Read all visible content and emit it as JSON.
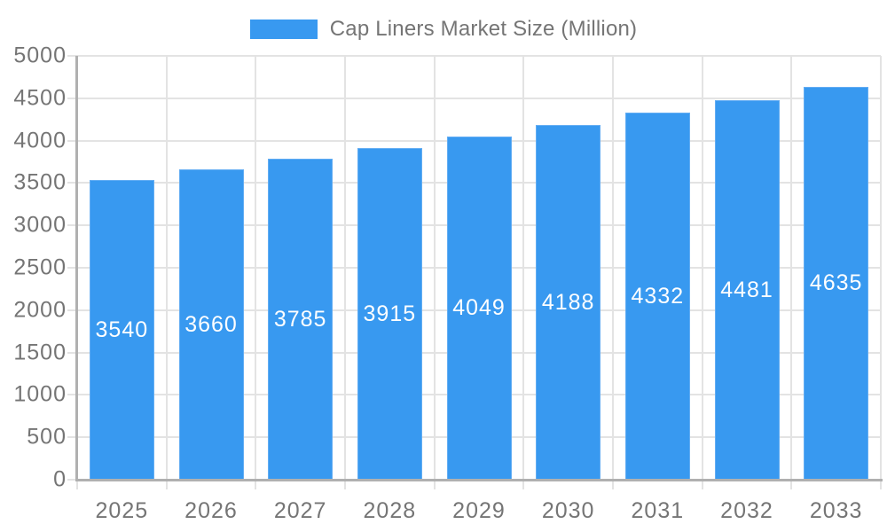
{
  "chart_data": {
    "type": "bar",
    "title": "",
    "legend": {
      "position": "top",
      "label": "Cap Liners Market Size (Million)"
    },
    "categories": [
      "2025",
      "2026",
      "2027",
      "2028",
      "2029",
      "2030",
      "2031",
      "2032",
      "2033"
    ],
    "series": [
      {
        "name": "Cap Liners Market Size (Million)",
        "values": [
          3540,
          3660,
          3785,
          3915,
          4049,
          4188,
          4332,
          4481,
          4635
        ]
      }
    ],
    "data_labels": [
      "3540",
      "3660",
      "3785",
      "3915",
      "4049",
      "4188",
      "4332",
      "4481",
      "4635"
    ],
    "xlabel": "",
    "ylabel": "",
    "ylim": [
      0,
      5000
    ],
    "ytick_step": 500,
    "y_tick_labels": [
      "0",
      "500",
      "1000",
      "1500",
      "2000",
      "2500",
      "3000",
      "3500",
      "4000",
      "4500",
      "5000"
    ],
    "grid": true,
    "colors": {
      "bar_fill": "#3899F0",
      "bar_edge": "#63ADF3",
      "bar_label_text": "#FFFFFF",
      "axis_text": "#757575",
      "grid_line": "#E3E3E3",
      "axis_line": "#B0B0B0",
      "background": "#FFFFFF"
    }
  }
}
